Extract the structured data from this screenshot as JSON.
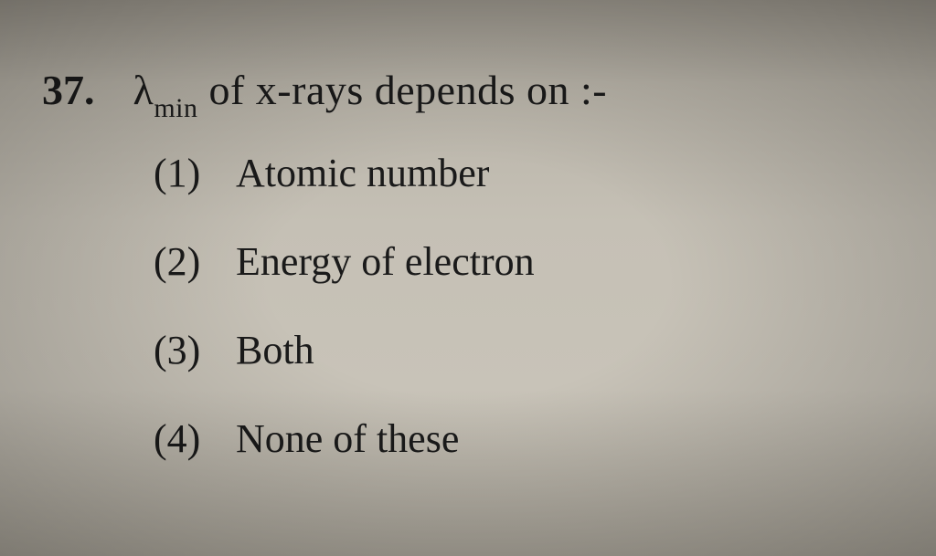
{
  "question": {
    "number": "37.",
    "prefix": "λ",
    "subscript": "min",
    "rest": " of x-rays depends on :-"
  },
  "options": [
    {
      "marker": "(1)",
      "text": "Atomic number"
    },
    {
      "marker": "(2)",
      "text": "Energy of electron"
    },
    {
      "marker": "(3)",
      "text": "Both"
    },
    {
      "marker": "(4)",
      "text": "None of these"
    }
  ],
  "style": {
    "font_family": "Times New Roman",
    "text_color": "#1a1a1a",
    "question_fontsize": 46,
    "option_fontsize": 44,
    "subscript_fontsize": 30,
    "background_gradient": [
      "#9a958b",
      "#b8b3a8",
      "#c5c0b5",
      "#c8c3b8",
      "#a8a398"
    ]
  }
}
